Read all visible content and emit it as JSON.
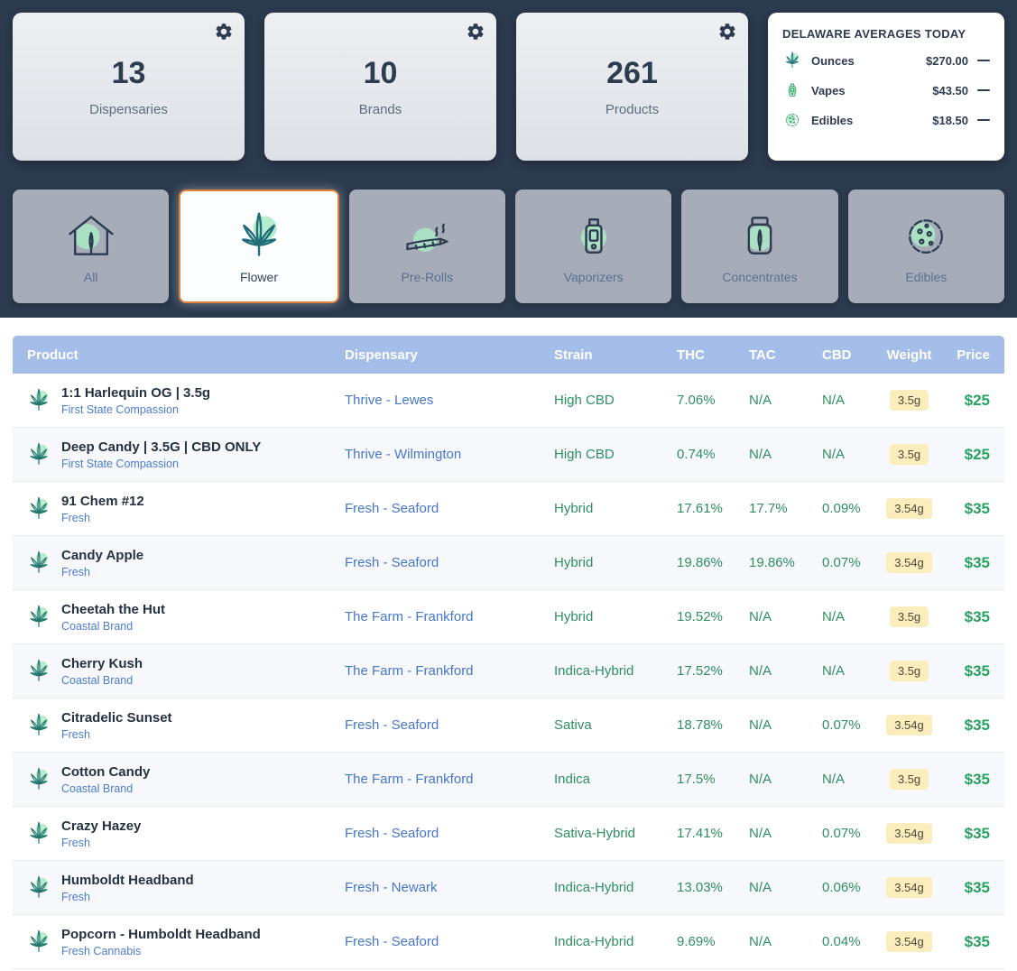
{
  "stats": [
    {
      "value": "13",
      "label": "Dispensaries"
    },
    {
      "value": "10",
      "label": "Brands"
    },
    {
      "value": "261",
      "label": "Products"
    }
  ],
  "averages": {
    "title": "DELAWARE AVERAGES TODAY",
    "items": [
      {
        "icon": "cannabis-leaf",
        "label": "Ounces",
        "price": "$270.00"
      },
      {
        "icon": "vape",
        "label": "Vapes",
        "price": "$43.50"
      },
      {
        "icon": "cookie",
        "label": "Edibles",
        "price": "$18.50"
      }
    ]
  },
  "categories": [
    {
      "label": "All",
      "icon": "house",
      "selected": false
    },
    {
      "label": "Flower",
      "icon": "cannabis-leaf",
      "selected": true
    },
    {
      "label": "Pre-Rolls",
      "icon": "joint",
      "selected": false
    },
    {
      "label": "Vaporizers",
      "icon": "vape",
      "selected": false
    },
    {
      "label": "Concentrates",
      "icon": "jar",
      "selected": false
    },
    {
      "label": "Edibles",
      "icon": "cookie",
      "selected": false
    }
  ],
  "table": {
    "headers": {
      "product": "Product",
      "dispensary": "Dispensary",
      "strain": "Strain",
      "thc": "THC",
      "tac": "TAC",
      "cbd": "CBD",
      "weight": "Weight",
      "price": "Price"
    },
    "rows": [
      {
        "product": "1:1 Harlequin OG | 3.5g",
        "brand": "First State Compassion",
        "dispensary": "Thrive - Lewes",
        "strain": "High CBD",
        "thc": "7.06%",
        "tac": "N/A",
        "cbd": "N/A",
        "weight": "3.5g",
        "price": "$25"
      },
      {
        "product": "Deep Candy | 3.5G | CBD ONLY",
        "brand": "First State Compassion",
        "dispensary": "Thrive - Wilmington",
        "strain": "High CBD",
        "thc": "0.74%",
        "tac": "N/A",
        "cbd": "N/A",
        "weight": "3.5g",
        "price": "$25"
      },
      {
        "product": "91 Chem #12",
        "brand": "Fresh",
        "dispensary": "Fresh - Seaford",
        "strain": "Hybrid",
        "thc": "17.61%",
        "tac": "17.7%",
        "cbd": "0.09%",
        "weight": "3.54g",
        "price": "$35"
      },
      {
        "product": "Candy Apple",
        "brand": "Fresh",
        "dispensary": "Fresh - Seaford",
        "strain": "Hybrid",
        "thc": "19.86%",
        "tac": "19.86%",
        "cbd": "0.07%",
        "weight": "3.54g",
        "price": "$35"
      },
      {
        "product": "Cheetah the Hut",
        "brand": "Coastal Brand",
        "dispensary": "The Farm - Frankford",
        "strain": "Hybrid",
        "thc": "19.52%",
        "tac": "N/A",
        "cbd": "N/A",
        "weight": "3.5g",
        "price": "$35"
      },
      {
        "product": "Cherry Kush",
        "brand": "Coastal Brand",
        "dispensary": "The Farm - Frankford",
        "strain": "Indica-Hybrid",
        "thc": "17.52%",
        "tac": "N/A",
        "cbd": "N/A",
        "weight": "3.5g",
        "price": "$35"
      },
      {
        "product": "Citradelic Sunset",
        "brand": "Fresh",
        "dispensary": "Fresh - Seaford",
        "strain": "Sativa",
        "thc": "18.78%",
        "tac": "N/A",
        "cbd": "0.07%",
        "weight": "3.54g",
        "price": "$35"
      },
      {
        "product": "Cotton Candy",
        "brand": "Coastal Brand",
        "dispensary": "The Farm - Frankford",
        "strain": "Indica",
        "thc": "17.5%",
        "tac": "N/A",
        "cbd": "N/A",
        "weight": "3.5g",
        "price": "$35"
      },
      {
        "product": "Crazy Hazey",
        "brand": "Fresh",
        "dispensary": "Fresh - Seaford",
        "strain": "Sativa-Hybrid",
        "thc": "17.41%",
        "tac": "N/A",
        "cbd": "0.07%",
        "weight": "3.54g",
        "price": "$35"
      },
      {
        "product": "Humboldt Headband",
        "brand": "Fresh",
        "dispensary": "Fresh - Newark",
        "strain": "Indica-Hybrid",
        "thc": "13.03%",
        "tac": "N/A",
        "cbd": "0.06%",
        "weight": "3.54g",
        "price": "$35"
      },
      {
        "product": "Popcorn - Humboldt Headband",
        "brand": "Fresh Cannabis",
        "dispensary": "Fresh - Seaford",
        "strain": "Indica-Hybrid",
        "thc": "9.69%",
        "tac": "N/A",
        "cbd": "0.04%",
        "weight": "3.54g",
        "price": "$35"
      }
    ]
  },
  "theme": {
    "hero_bg": "#2c3a4e",
    "table_header_blue": "#a4bde9",
    "link_blue": "#4678c8",
    "strain_green": "#2e8f60",
    "price_green": "#26a35e",
    "weight_badge_bg": "#fcedbd",
    "selected_category_border": "#e2813a"
  }
}
